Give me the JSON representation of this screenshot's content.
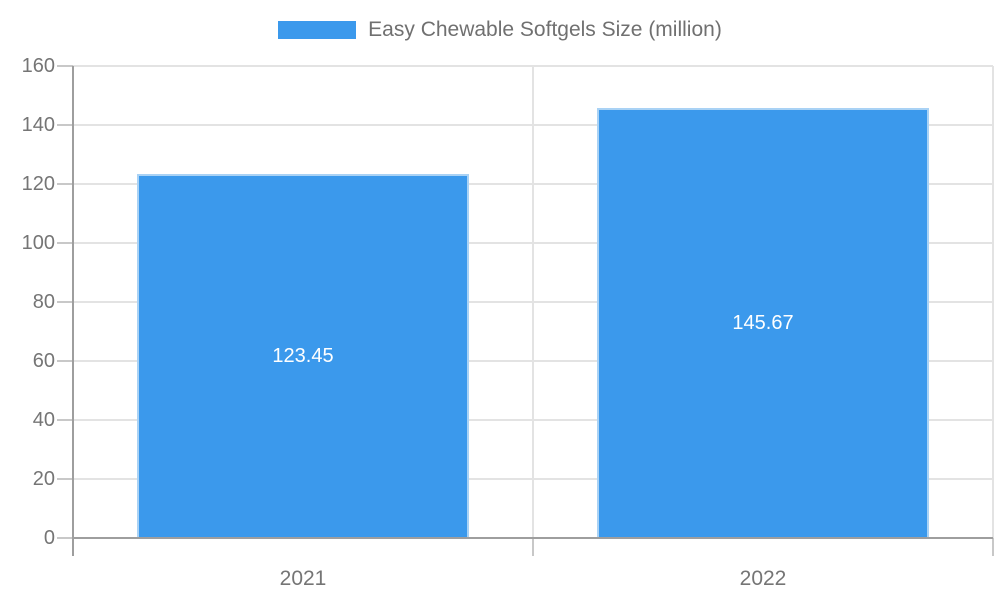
{
  "chart": {
    "legend_label": "Easy Chewable Softgels Size (million)"
  },
  "chart_data": {
    "type": "bar",
    "title": "",
    "series_name": "Easy Chewable Softgels Size (million)",
    "categories": [
      "2021",
      "2022"
    ],
    "values": [
      123.45,
      145.67
    ],
    "value_labels": [
      "123.45",
      "145.67"
    ],
    "ylim": [
      0,
      160
    ],
    "yticks": [
      0,
      20,
      40,
      60,
      80,
      100,
      120,
      140,
      160
    ],
    "ytick_labels": [
      "0",
      "20",
      "40",
      "60",
      "80",
      "100",
      "120",
      "140",
      "160"
    ],
    "grid": true,
    "legend_position": "top-center",
    "colors": {
      "bar_fill": "#3B99EC",
      "bar_border": "#A9D2F5",
      "value_label_text": "#FFFFFF",
      "axis_text": "#757575",
      "legend_text": "#707070",
      "axis_line": "#9E9E9E",
      "gridline": "#E3E3E3",
      "tick": "#C8C8C8",
      "background": "#FFFFFF"
    }
  }
}
